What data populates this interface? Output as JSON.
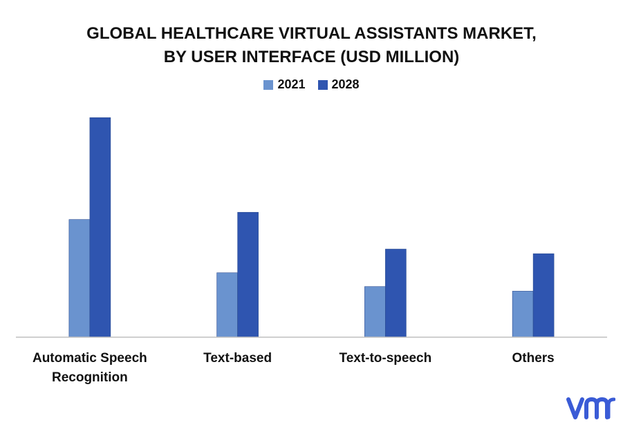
{
  "chart_data": {
    "type": "bar",
    "title_lines": [
      "GLOBAL HEALTHCARE VIRTUAL ASSISTANTS MARKET,",
      "BY USER INTERFACE (USD MILLION)"
    ],
    "categories": [
      [
        "Automatic Speech",
        "Recognition"
      ],
      [
        "Text-based"
      ],
      [
        "Text-to-speech"
      ],
      [
        "Others"
      ]
    ],
    "series": [
      {
        "name": "2021",
        "color": "#6a93cf",
        "values": [
          179,
          98,
          77,
          70
        ]
      },
      {
        "name": "2028",
        "color": "#2f55b0",
        "values": [
          334,
          190,
          134,
          127
        ]
      }
    ],
    "ylim": [
      0,
      350
    ],
    "grid": false,
    "legend_position": "top-center"
  },
  "logo": {
    "text": "vmr",
    "color": "#3a5bd6"
  }
}
